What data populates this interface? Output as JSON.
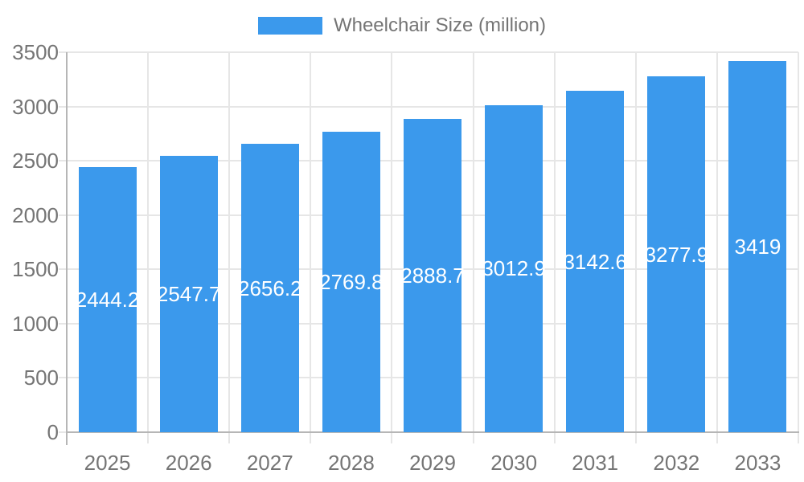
{
  "chart_data": {
    "type": "bar",
    "title": "",
    "legend": "Wheelchair Size (million)",
    "legend_position": "top-center",
    "categories": [
      "2025",
      "2026",
      "2027",
      "2028",
      "2029",
      "2030",
      "2031",
      "2032",
      "2033"
    ],
    "values": [
      2444.2,
      2547.7,
      2656.2,
      2769.8,
      2888.7,
      3012.9,
      3142.6,
      3277.9,
      3419
    ],
    "data_labels_visible": true,
    "xlabel": "",
    "ylabel": "",
    "ylim": [
      0,
      3500
    ],
    "yticks": [
      0,
      500,
      1000,
      1500,
      2000,
      2500,
      3000,
      3500
    ],
    "grid": true
  },
  "colors": {
    "bar": "#3B99EC",
    "grid_line": "#E6E6E6",
    "axis_line": "#B6B6B6",
    "axis_text": "#757575",
    "data_label_text": "#FFFFFF",
    "background": "#FFFFFF"
  }
}
